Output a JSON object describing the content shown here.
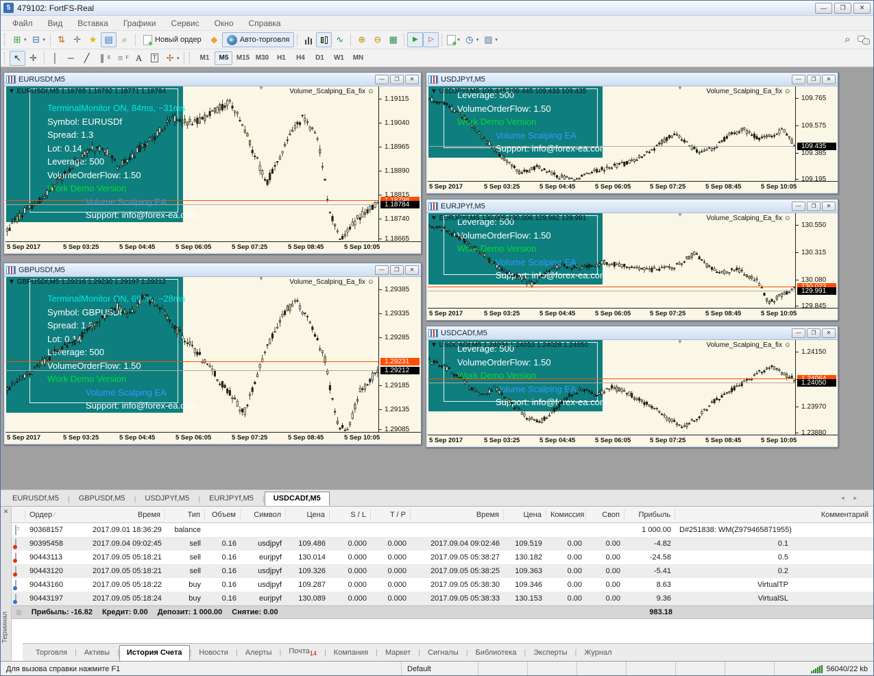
{
  "window": {
    "title": "479102: FortFS-Real"
  },
  "menu": [
    "Файл",
    "Вид",
    "Вставка",
    "Графики",
    "Сервис",
    "Окно",
    "Справка"
  ],
  "icons": {
    "new_chart": "⊞",
    "profiles": "⊟",
    "market_watch": "⇅",
    "data_window": "✛",
    "navigator": "★",
    "terminal": "▤",
    "tester": "⌕",
    "metaeditor": "◆",
    "line_chart": "∿",
    "zoom_in": "⊕",
    "zoom_out": "⊖",
    "tile": "▦",
    "autoscroll": "▶",
    "shift": "▷",
    "clock": "◷",
    "template": "▨",
    "search": "⌕",
    "dropdown": "▾",
    "cursor": "↖",
    "crosshair": "✛",
    "vline": "│",
    "hline": "─",
    "trend": "╱",
    "channel": "∥",
    "fib": "≡",
    "text": "A",
    "label": "T",
    "shapes": "✢",
    "minimize": "—",
    "restore": "❐",
    "close": "✕",
    "smiley": "☺",
    "scroll_left": "◂",
    "scroll_right": "▸"
  },
  "toolbar": {
    "new_order": "Новый ордер",
    "auto_trading": "Авто-торговля",
    "timeframes": [
      "M1",
      "M5",
      "M15",
      "M30",
      "H1",
      "H4",
      "D1",
      "W1",
      "MN"
    ],
    "active_timeframe": "M5"
  },
  "charts": [
    {
      "title": "EURUSDf,M5",
      "quote": "EURUSDf,M5  1.18785 1.18792 1.18771 1.18784",
      "indicator": "Volume_Scalping_Ea_fix",
      "overlay": [
        {
          "t": "TerminalMonitor ON, 84ms, ~31ms",
          "c": "cyan"
        },
        {
          "t": "Symbol: EURUSDf",
          "c": "white"
        },
        {
          "t": "Spread: 1.3",
          "c": "white"
        },
        {
          "t": "Lot: 0.14",
          "c": "white"
        },
        {
          "t": "Leverage: 500",
          "c": "white"
        },
        {
          "t": "VolumeOrderFlow: 1.50",
          "c": "white"
        },
        {
          "t": "Work Demo Version",
          "c": "lime"
        },
        {
          "t": "Volume Scalping EA",
          "c": "blue",
          "i": 1
        },
        {
          "t": "Support: info@forex-ea.com",
          "c": "white",
          "i": 1
        }
      ],
      "ticks": [
        {
          "t": "1.19115",
          "rel": 0.08
        },
        {
          "t": "1.19040",
          "rel": 0.235
        },
        {
          "t": "1.18965",
          "rel": 0.39
        },
        {
          "t": "1.18890",
          "rel": 0.545
        },
        {
          "t": "1.18815",
          "rel": 0.7
        },
        {
          "t": "1.18740",
          "rel": 0.855
        },
        {
          "t": "1.18665",
          "rel": 0.985
        }
      ],
      "ask": {
        "t": "1.18798",
        "rel": 0.735
      },
      "bid": {
        "t": "1.18784",
        "rel": 0.765
      },
      "times": [
        "5 Sep 2017",
        "5 Sep 03:25",
        "5 Sep 04:45",
        "5 Sep 06:05",
        "5 Sep 07:25",
        "5 Sep 08:45",
        "5 Sep 10:05"
      ],
      "shape": [
        [
          0,
          0.93
        ],
        [
          0.05,
          0.8
        ],
        [
          0.1,
          0.72
        ],
        [
          0.16,
          0.55
        ],
        [
          0.22,
          0.4
        ],
        [
          0.27,
          0.42
        ],
        [
          0.3,
          0.52
        ],
        [
          0.34,
          0.44
        ],
        [
          0.4,
          0.32
        ],
        [
          0.45,
          0.2
        ],
        [
          0.5,
          0.24
        ],
        [
          0.55,
          0.18
        ],
        [
          0.6,
          0.1
        ],
        [
          0.63,
          0.22
        ],
        [
          0.67,
          0.45
        ],
        [
          0.7,
          0.62
        ],
        [
          0.73,
          0.5
        ],
        [
          0.77,
          0.28
        ],
        [
          0.8,
          0.2
        ],
        [
          0.84,
          0.35
        ],
        [
          0.87,
          0.8
        ],
        [
          0.9,
          1.0
        ],
        [
          0.93,
          0.9
        ],
        [
          0.96,
          0.82
        ],
        [
          1,
          0.76
        ]
      ],
      "seed": 7
    },
    {
      "title": "GBPUSDf,M5",
      "quote": "GBPUSDf,M5  1.29216 1.29230 1.29197 1.29212",
      "indicator": "Volume_Scalping_Ea_fix",
      "overlay": [
        {
          "t": "TerminalMonitor ON, 69ms, ~28ms",
          "c": "cyan"
        },
        {
          "t": "Symbol: GBPUSDf",
          "c": "white"
        },
        {
          "t": "Spread: 1.8",
          "c": "white"
        },
        {
          "t": "Lot: 0.14",
          "c": "white"
        },
        {
          "t": "Leverage: 500",
          "c": "white"
        },
        {
          "t": "VolumeOrderFlow: 1.50",
          "c": "white"
        },
        {
          "t": "Work Demo Version",
          "c": "lime"
        },
        {
          "t": "Volume Scalping EA",
          "c": "blue",
          "i": 1
        },
        {
          "t": "Support: info@forex-ea.com",
          "c": "white",
          "i": 1
        }
      ],
      "ticks": [
        {
          "t": "1.29385",
          "rel": 0.08
        },
        {
          "t": "1.29335",
          "rel": 0.235
        },
        {
          "t": "1.29285",
          "rel": 0.39
        },
        {
          "t": "1.29185",
          "rel": 0.7
        },
        {
          "t": "1.29135",
          "rel": 0.855
        },
        {
          "t": "1.29085",
          "rel": 0.985
        }
      ],
      "ask": {
        "t": "1.29231",
        "rel": 0.547
      },
      "bid": {
        "t": "1.29212",
        "rel": 0.606
      },
      "times": [
        "5 Sep 2017",
        "5 Sep 03:25",
        "5 Sep 04:45",
        "5 Sep 06:05",
        "5 Sep 07:25",
        "5 Sep 08:45",
        "5 Sep 10:05"
      ],
      "shape": [
        [
          0,
          0.72
        ],
        [
          0.06,
          0.62
        ],
        [
          0.12,
          0.5
        ],
        [
          0.18,
          0.42
        ],
        [
          0.24,
          0.3
        ],
        [
          0.3,
          0.18
        ],
        [
          0.33,
          0.25
        ],
        [
          0.37,
          0.12
        ],
        [
          0.41,
          0.2
        ],
        [
          0.45,
          0.32
        ],
        [
          0.5,
          0.45
        ],
        [
          0.55,
          0.6
        ],
        [
          0.6,
          0.75
        ],
        [
          0.64,
          0.88
        ],
        [
          0.68,
          0.6
        ],
        [
          0.72,
          0.35
        ],
        [
          0.75,
          0.22
        ],
        [
          0.78,
          0.16
        ],
        [
          0.82,
          0.3
        ],
        [
          0.86,
          0.55
        ],
        [
          0.89,
          0.95
        ],
        [
          0.92,
          1.0
        ],
        [
          0.95,
          0.75
        ],
        [
          1,
          0.6
        ]
      ],
      "seed": 13
    },
    {
      "title": "USDJPYf,M5",
      "quote": "USDJPYf,M5  109.445 109.445 109.433 109.435",
      "indicator": "Volume_Scalping_Ea_fix",
      "overlay": [
        {
          "t": "Leverage: 500",
          "c": "white"
        },
        {
          "t": "VolumeOrderFlow: 1.50",
          "c": "white"
        },
        {
          "t": "Work Demo Version",
          "c": "lime"
        },
        {
          "t": "Volume Scalping EA",
          "c": "blue",
          "i": 1
        },
        {
          "t": "Support: info@forex-ea.com",
          "c": "white",
          "i": 1
        }
      ],
      "ticks": [
        {
          "t": "109.765",
          "rel": 0.13
        },
        {
          "t": "109.575",
          "rel": 0.42
        },
        {
          "t": "109.385",
          "rel": 0.71
        },
        {
          "t": "109.195",
          "rel": 0.985
        }
      ],
      "ask": null,
      "bid": {
        "t": "109.435",
        "rel": 0.634
      },
      "times": [
        "5 Sep 2017",
        "5 Sep 03:25",
        "5 Sep 04:45",
        "5 Sep 06:05",
        "5 Sep 07:25",
        "5 Sep 08:45",
        "5 Sep 10:05"
      ],
      "shape": [
        [
          0,
          0.13
        ],
        [
          0.05,
          0.2
        ],
        [
          0.1,
          0.35
        ],
        [
          0.15,
          0.55
        ],
        [
          0.2,
          0.75
        ],
        [
          0.25,
          0.92
        ],
        [
          0.3,
          0.85
        ],
        [
          0.35,
          0.95
        ],
        [
          0.4,
          0.98
        ],
        [
          0.45,
          0.9
        ],
        [
          0.5,
          0.85
        ],
        [
          0.55,
          0.8
        ],
        [
          0.6,
          0.7
        ],
        [
          0.65,
          0.55
        ],
        [
          0.68,
          0.5
        ],
        [
          0.71,
          0.62
        ],
        [
          0.74,
          0.7
        ],
        [
          0.78,
          0.65
        ],
        [
          0.82,
          0.52
        ],
        [
          0.86,
          0.45
        ],
        [
          0.9,
          0.55
        ],
        [
          0.94,
          0.52
        ],
        [
          0.97,
          0.45
        ],
        [
          1,
          0.62
        ]
      ],
      "seed": 21
    },
    {
      "title": "EURJPYf,M5",
      "quote": "EURJPYf,M5  130.005 130.006 129.982 129.991",
      "indicator": "Volume_Scalping_Ea_fix",
      "overlay": [
        {
          "t": "Leverage: 500",
          "c": "white"
        },
        {
          "t": "VolumeOrderFlow: 1.50",
          "c": "white"
        },
        {
          "t": "Work Demo Version",
          "c": "lime"
        },
        {
          "t": "Volume Scalping EA",
          "c": "blue",
          "i": 1
        },
        {
          "t": "Support: info@forex-ea.com",
          "c": "white",
          "i": 1
        }
      ],
      "ticks": [
        {
          "t": "130.550",
          "rel": 0.13
        },
        {
          "t": "130.315",
          "rel": 0.42
        },
        {
          "t": "130.080",
          "rel": 0.71
        },
        {
          "t": "129.845",
          "rel": 0.985
        }
      ],
      "ask": {
        "t": "130.023",
        "rel": 0.782
      },
      "bid": {
        "t": "129.991",
        "rel": 0.822
      },
      "times": [
        "5 Sep 2017",
        "5 Sep 03:25",
        "5 Sep 04:45",
        "5 Sep 06:05",
        "5 Sep 07:25",
        "5 Sep 08:45",
        "5 Sep 10:05"
      ],
      "shape": [
        [
          0,
          0.12
        ],
        [
          0.05,
          0.18
        ],
        [
          0.1,
          0.3
        ],
        [
          0.15,
          0.45
        ],
        [
          0.2,
          0.6
        ],
        [
          0.25,
          0.68
        ],
        [
          0.28,
          0.75
        ],
        [
          0.32,
          0.62
        ],
        [
          0.36,
          0.55
        ],
        [
          0.42,
          0.58
        ],
        [
          0.48,
          0.52
        ],
        [
          0.54,
          0.56
        ],
        [
          0.6,
          0.6
        ],
        [
          0.66,
          0.58
        ],
        [
          0.7,
          0.5
        ],
        [
          0.73,
          0.42
        ],
        [
          0.76,
          0.55
        ],
        [
          0.8,
          0.62
        ],
        [
          0.85,
          0.6
        ],
        [
          0.9,
          0.72
        ],
        [
          0.93,
          0.95
        ],
        [
          0.96,
          0.88
        ],
        [
          1,
          0.8
        ]
      ],
      "seed": 33
    },
    {
      "title": "USDCADf,M5",
      "quote": "USDCADf,M5  1.24034 1.24053 1.24028 1.24050",
      "indicator": "Volume_Scalping_Ea_fix",
      "overlay": [
        {
          "t": "Leverage: 500",
          "c": "white"
        },
        {
          "t": "VolumeOrderFlow: 1.50",
          "c": "white"
        },
        {
          "t": "Work Demo Version",
          "c": "lime"
        },
        {
          "t": "Volume Scalping EA",
          "c": "blue",
          "i": 1
        },
        {
          "t": "Support: info@forex-ea.com",
          "c": "white",
          "i": 1
        }
      ],
      "ticks": [
        {
          "t": "1.24150",
          "rel": 0.13
        },
        {
          "t": "1.24060",
          "rel": 0.42
        },
        {
          "t": "1.23970",
          "rel": 0.71
        },
        {
          "t": "1.23880",
          "rel": 0.985
        }
      ],
      "ask": {
        "t": "1.24064",
        "rel": 0.408
      },
      "bid": {
        "t": "1.24050",
        "rel": 0.452
      },
      "times": [
        "5 Sep 2017",
        "5 Sep 03:25",
        "5 Sep 04:45",
        "5 Sep 06:05",
        "5 Sep 07:25",
        "5 Sep 08:45",
        "5 Sep 10:05"
      ],
      "shape": [
        [
          0,
          0.22
        ],
        [
          0.05,
          0.3
        ],
        [
          0.1,
          0.45
        ],
        [
          0.14,
          0.6
        ],
        [
          0.18,
          0.5
        ],
        [
          0.22,
          0.65
        ],
        [
          0.26,
          0.8
        ],
        [
          0.3,
          0.88
        ],
        [
          0.34,
          0.75
        ],
        [
          0.38,
          0.6
        ],
        [
          0.42,
          0.52
        ],
        [
          0.46,
          0.58
        ],
        [
          0.5,
          0.5
        ],
        [
          0.54,
          0.55
        ],
        [
          0.58,
          0.65
        ],
        [
          0.62,
          0.72
        ],
        [
          0.66,
          0.85
        ],
        [
          0.7,
          0.92
        ],
        [
          0.74,
          0.8
        ],
        [
          0.78,
          0.65
        ],
        [
          0.82,
          0.55
        ],
        [
          0.86,
          0.45
        ],
        [
          0.9,
          0.35
        ],
        [
          0.94,
          0.28
        ],
        [
          1,
          0.42
        ]
      ],
      "seed": 47
    }
  ],
  "chart_tabs": [
    {
      "label": "EURUSDf,M5",
      "active": false
    },
    {
      "label": "GBPUSDf,M5",
      "active": false
    },
    {
      "label": "USDJPYf,M5",
      "active": false
    },
    {
      "label": "EURJPYf,M5",
      "active": false
    },
    {
      "label": "USDCADf,M5",
      "active": true
    }
  ],
  "terminal": {
    "panel_label": "Терминал",
    "columns": [
      "Ордер",
      "Время",
      "Тип",
      "Объем",
      "Символ",
      "Цена",
      "S / L",
      "T / P",
      "Время",
      "Цена",
      "Комиссия",
      "Своп",
      "Прибыль",
      "Комментарий"
    ],
    "rows": [
      {
        "icon": "balance",
        "cells": [
          "90368157",
          "2017.09.01 18:36:29",
          "balance",
          "",
          "",
          "",
          "",
          "",
          "",
          "",
          "",
          "",
          "1 000.00",
          "D#251838: WM(Z979465871955)"
        ]
      },
      {
        "icon": "sell",
        "cells": [
          "90395458",
          "2017.09.04 09:02:45",
          "sell",
          "0.16",
          "usdjpyf",
          "109.486",
          "0.000",
          "0.000",
          "2017.09.04 09:02:46",
          "109.519",
          "0.00",
          "0.00",
          "-4.82",
          "0.1"
        ]
      },
      {
        "icon": "sell",
        "cells": [
          "90443113",
          "2017.09.05 05:18:21",
          "sell",
          "0.16",
          "eurjpyf",
          "130.014",
          "0.000",
          "0.000",
          "2017.09.05 05:38:27",
          "130.182",
          "0.00",
          "0.00",
          "-24.58",
          "0.5"
        ]
      },
      {
        "icon": "sell",
        "cells": [
          "90443120",
          "2017.09.05 05:18:21",
          "sell",
          "0.16",
          "usdjpyf",
          "109.326",
          "0.000",
          "0.000",
          "2017.09.05 05:38:25",
          "109.363",
          "0.00",
          "0.00",
          "-5.41",
          "0.2"
        ]
      },
      {
        "icon": "buy",
        "cells": [
          "90443160",
          "2017.09.05 05:18:22",
          "buy",
          "0.16",
          "usdjpyf",
          "109.287",
          "0.000",
          "0.000",
          "2017.09.05 05:38:30",
          "109.346",
          "0.00",
          "0.00",
          "8.63",
          "VirtualTP"
        ]
      },
      {
        "icon": "buy",
        "cells": [
          "90443197",
          "2017.09.05 05:18:24",
          "buy",
          "0.16",
          "eurjpyf",
          "130.089",
          "0.000",
          "0.000",
          "2017.09.05 05:38:33",
          "130.153",
          "0.00",
          "0.00",
          "9.36",
          "VirtualSL"
        ]
      }
    ],
    "summary": {
      "items": [
        "Прибыль: -16.82",
        "Кредит: 0.00",
        "Депозит: 1 000.00",
        "Снятие: 0.00"
      ],
      "total": "983.18"
    },
    "tabs": [
      {
        "label": "Торговля",
        "active": false
      },
      {
        "label": "Активы",
        "active": false
      },
      {
        "label": "История Счета",
        "active": true
      },
      {
        "label": "Новости",
        "active": false
      },
      {
        "label": "Алерты",
        "active": false
      },
      {
        "label": "Почта",
        "active": false,
        "badge": "14"
      },
      {
        "label": "Компания",
        "active": false
      },
      {
        "label": "Маркет",
        "active": false
      },
      {
        "label": "Сигналы",
        "active": false
      },
      {
        "label": "Библиотека",
        "active": false
      },
      {
        "label": "Эксперты",
        "active": false
      },
      {
        "label": "Журнал",
        "active": false
      }
    ]
  },
  "statusbar": {
    "help": "Для вызова справки нажмите F1",
    "profile": "Default",
    "traffic": "56040/22 kb"
  }
}
